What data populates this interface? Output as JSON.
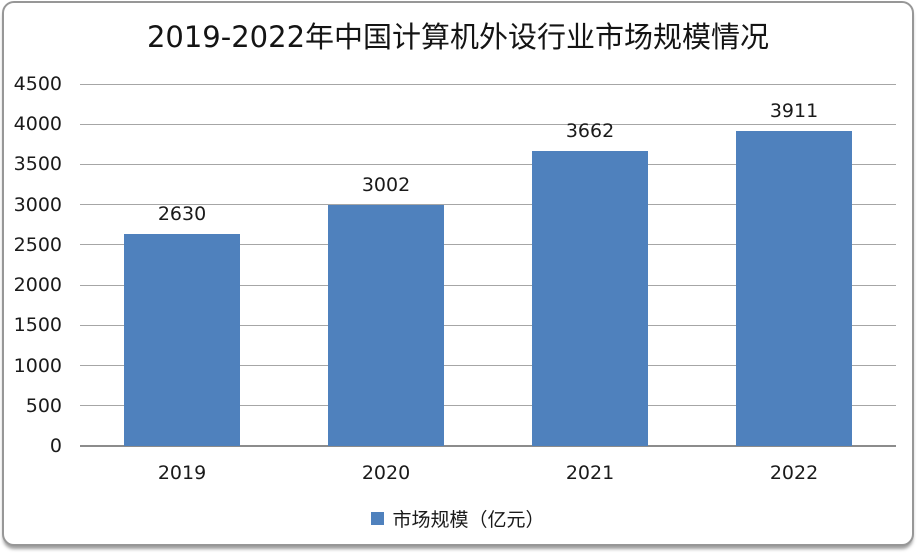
{
  "chart_data": {
    "type": "bar",
    "title": "2019-2022年中国计算机外设行业市场规模情况",
    "categories": [
      "2019",
      "2020",
      "2021",
      "2022"
    ],
    "series": [
      {
        "name": "市场规模（亿元）",
        "values": [
          2630,
          3002,
          3662,
          3911
        ]
      }
    ],
    "data_labels": [
      "2630",
      "3002",
      "3662",
      "3911"
    ],
    "xlabel": "",
    "ylabel": "",
    "ylim": [
      0,
      4500
    ],
    "yticks": [
      0,
      500,
      1000,
      1500,
      2000,
      2500,
      3000,
      3500,
      4000,
      4500
    ],
    "grid": true,
    "legend_position": "bottom",
    "legend_label": "市场规模（亿元）",
    "colors": {
      "bar": "#4F81BD",
      "gridline": "#A6A6A6",
      "axis_line": "#8C8C8C",
      "text": "#1A1A1A",
      "title_text": "#141414",
      "frame_border": "#979797",
      "background": "#FFFFFF"
    }
  }
}
